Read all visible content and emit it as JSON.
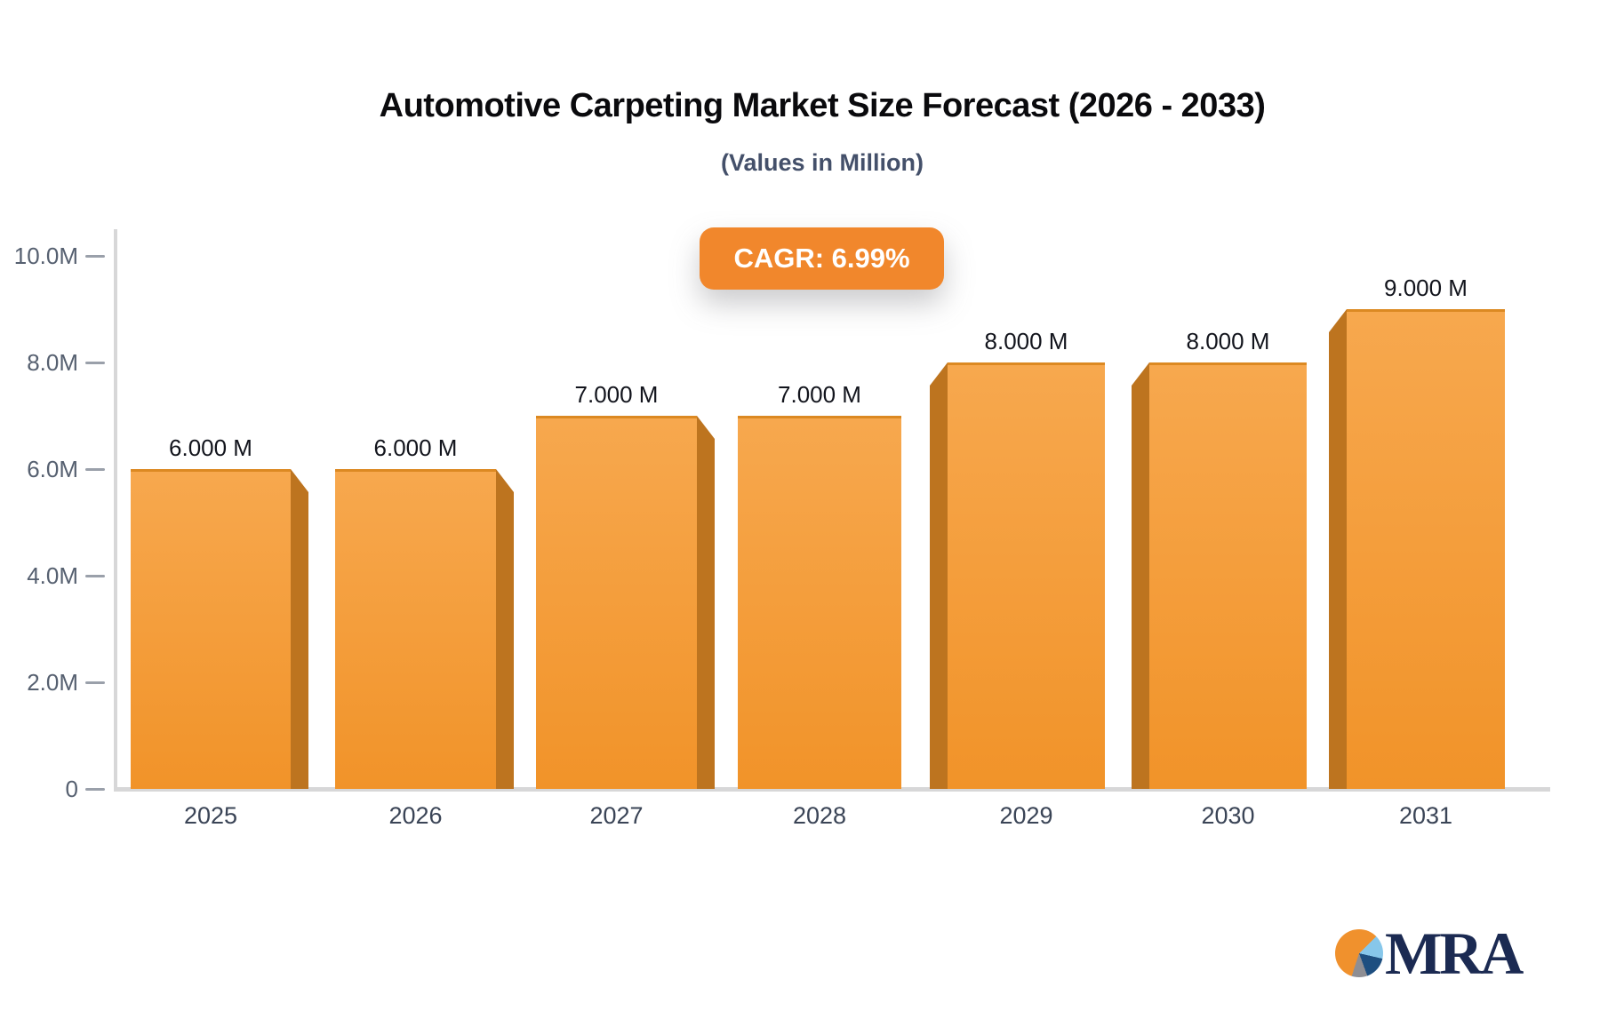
{
  "title": "Automotive Carpeting Market Size Forecast (2026 - 2033)",
  "subtitle": "(Values in Million)",
  "badge": {
    "label": "CAGR: 6.99%"
  },
  "logo": {
    "text": "MRA"
  },
  "chart_data": {
    "type": "bar",
    "title": "Automotive Carpeting Market Size Forecast (2026 - 2033)",
    "subtitle": "(Values in Million)",
    "annotation": "CAGR: 6.99%",
    "categories": [
      "2025",
      "2026",
      "2027",
      "2028",
      "2029",
      "2030",
      "2031"
    ],
    "values_millions": [
      6,
      6,
      7,
      7,
      8,
      8,
      9
    ],
    "value_labels": [
      "6.000 M",
      "6.000 M",
      "7.000 M",
      "7.000 M",
      "8.000 M",
      "8.000 M",
      "9.000 M"
    ],
    "xlabel": "",
    "ylabel": "",
    "ylim_millions": [
      0,
      10
    ],
    "y_ticks": [
      {
        "label": "0",
        "value": 0
      },
      {
        "label": "2.0M",
        "value": 2
      },
      {
        "label": "4.0M",
        "value": 4
      },
      {
        "label": "6.0M",
        "value": 6
      },
      {
        "label": "8.0M",
        "value": 8
      },
      {
        "label": "10.0M",
        "value": 10
      }
    ],
    "grid": "off",
    "legend": "none",
    "style": "3d-extruded-bars"
  },
  "colors": {
    "bar_face_top": "#F7A84E",
    "bar_face_bottom": "#F19329",
    "bar_side": "#BD741F",
    "bar_top_edge": "#DC8922",
    "badge_bg": "#F1872C",
    "badge_text": "#FFFFFF",
    "title_text": "#0A0A0D",
    "subtitle_text": "#44506A",
    "axis_line": "#D7D7D8",
    "tick": "#9AA0AA",
    "y_label": "#566070",
    "x_label": "#3A4456",
    "value_label": "#12141C",
    "logo_navy": "#1B2A52",
    "logo_orange": "#F0912D",
    "logo_lightblue": "#87C7EA",
    "logo_blue": "#1E4F80",
    "logo_gray": "#8E8E93"
  }
}
